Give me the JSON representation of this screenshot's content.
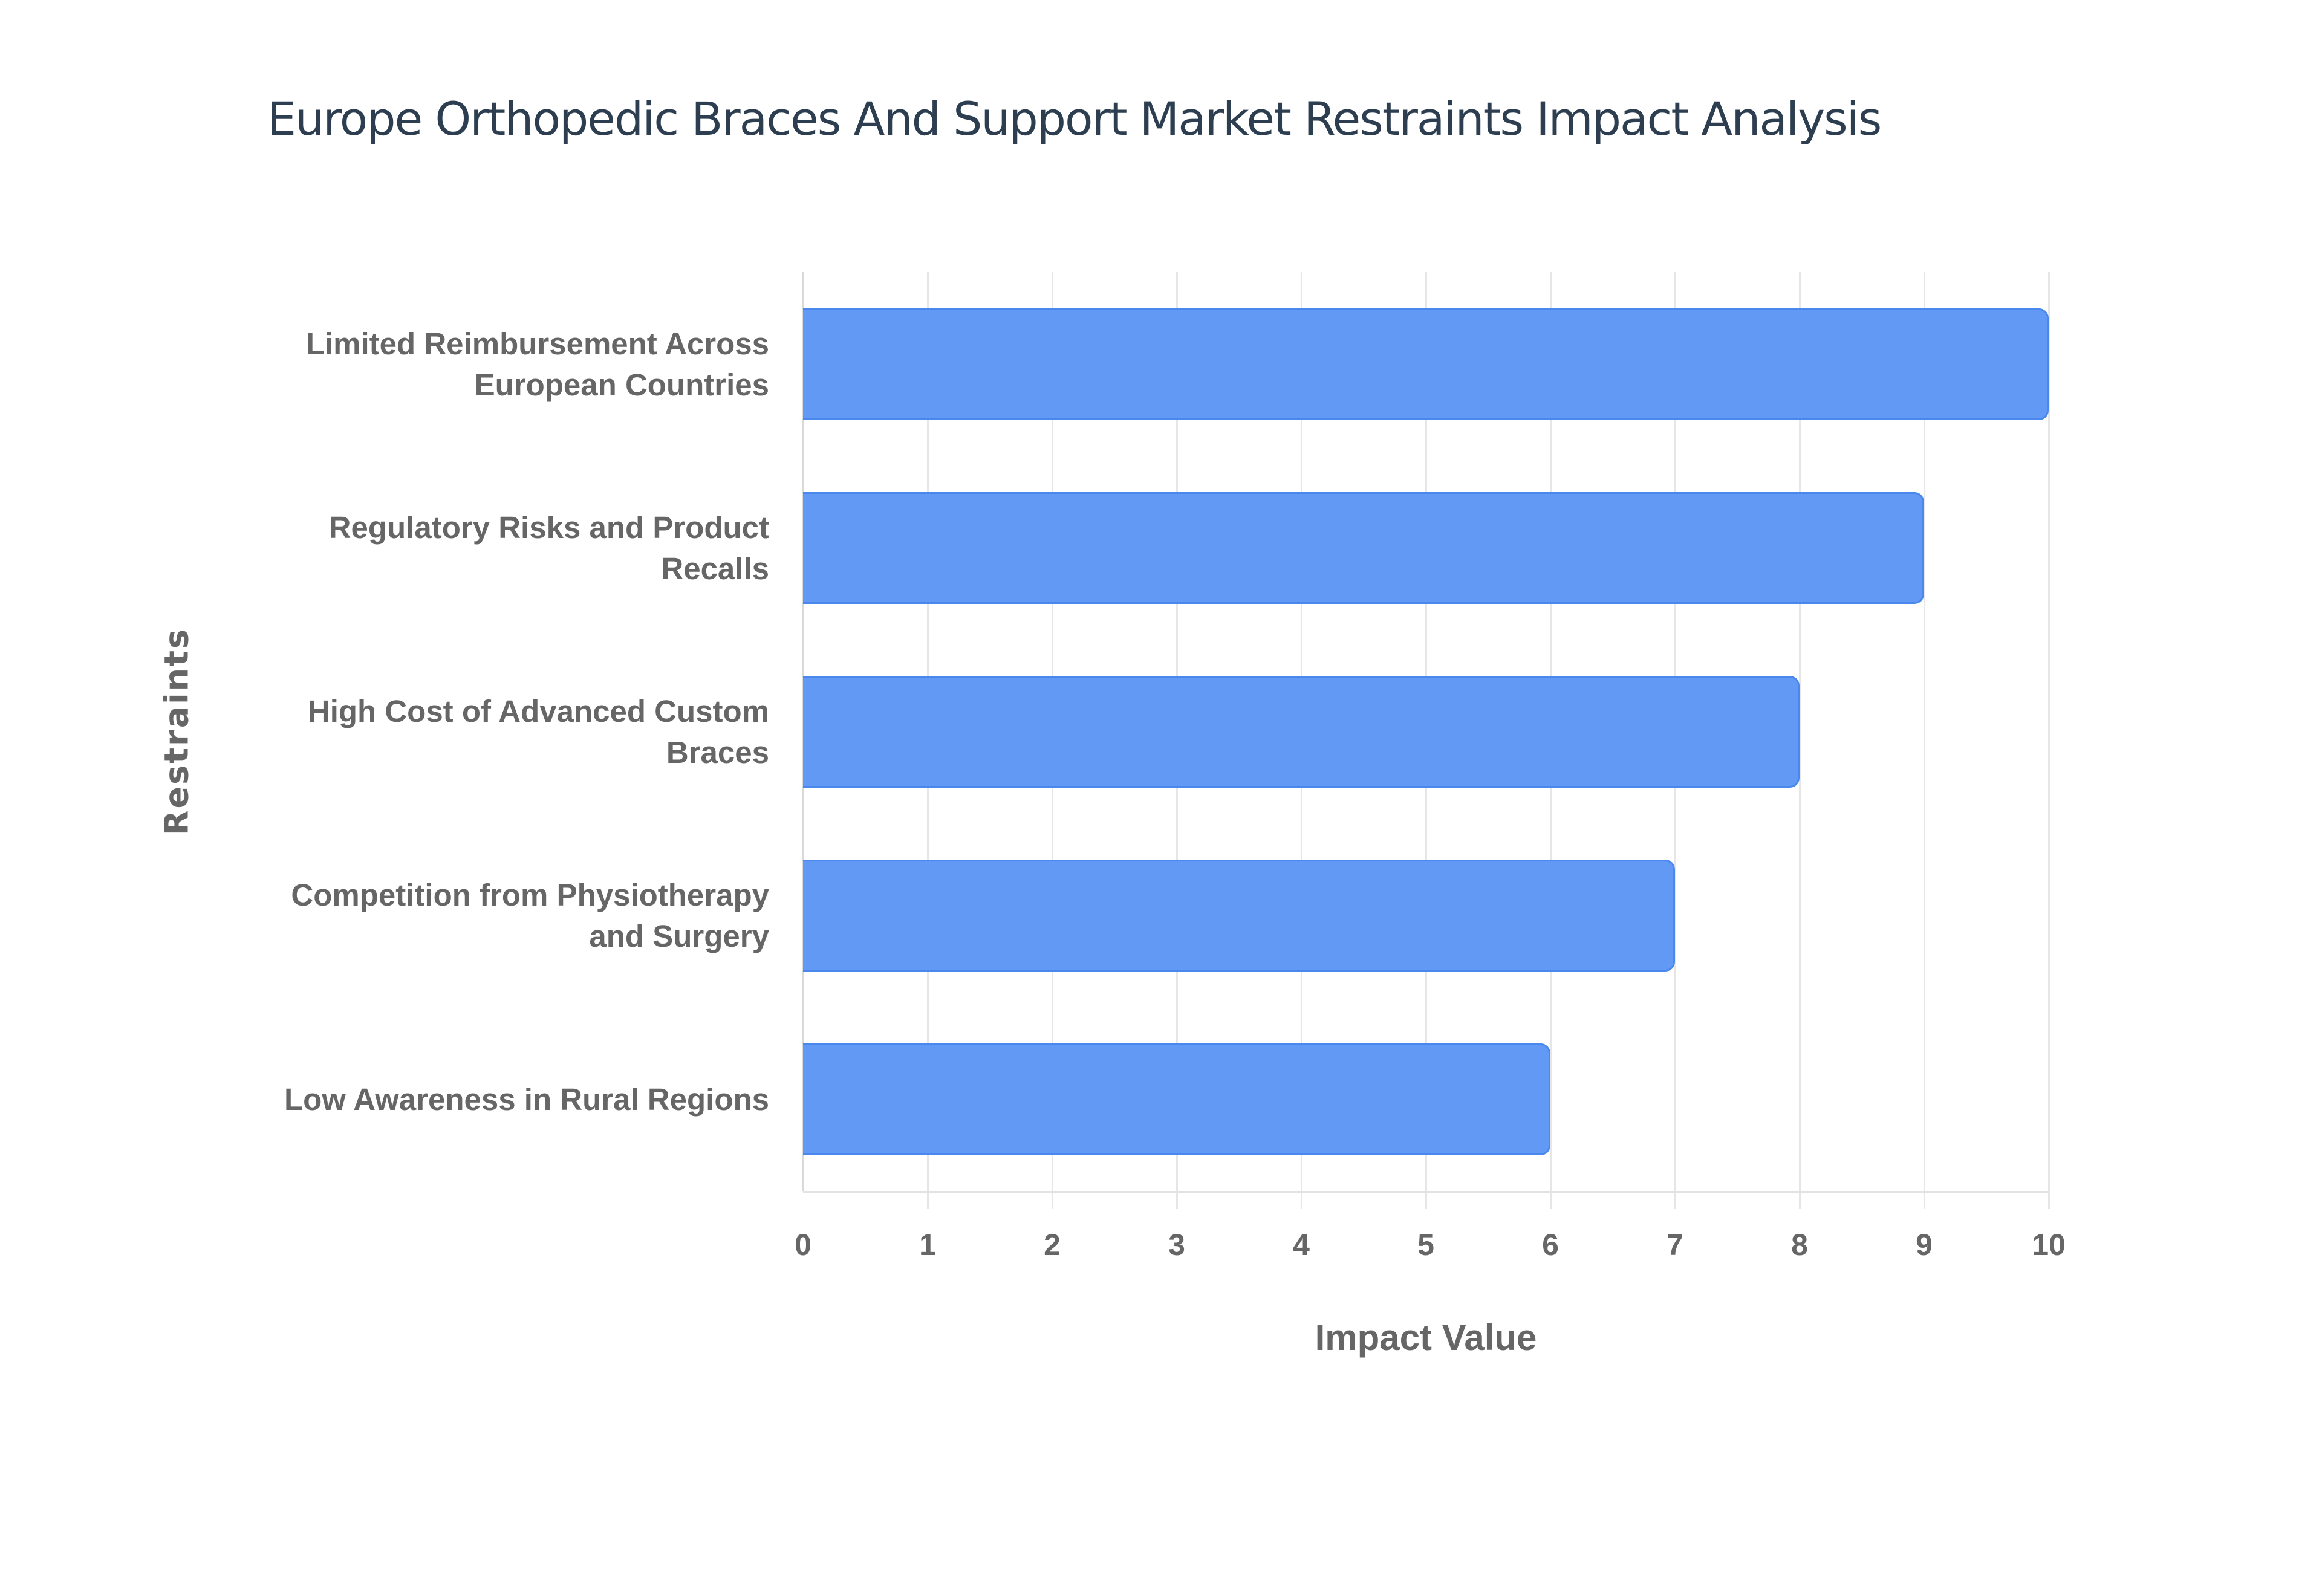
{
  "title": "Europe Orthopedic Braces And Support Market Restraints Impact Analysis",
  "colors": {
    "bar_fill": "#6199f4",
    "bar_border": "#4b88ee",
    "title": "#2c3e50",
    "axis_text": "#666666",
    "grid": "#e6e6e6"
  },
  "chart_data": {
    "type": "bar",
    "orientation": "horizontal",
    "title": "Europe Orthopedic Braces And Support Market Restraints Impact Analysis",
    "xlabel": "Impact Value",
    "ylabel": "Restraints",
    "categories": [
      "Limited Reimbursement Across European Countries",
      "Regulatory Risks and Product Recalls",
      "High Cost of Advanced Custom Braces",
      "Competition from Physiotherapy and Surgery",
      "Low Awareness in Rural Regions"
    ],
    "category_label_lines": [
      [
        "Limited Reimbursement Across",
        "European Countries"
      ],
      [
        "Regulatory Risks and Product",
        "Recalls"
      ],
      [
        "High Cost of Advanced Custom",
        "Braces"
      ],
      [
        "Competition from Physiotherapy",
        "and Surgery"
      ],
      [
        "Low Awareness in Rural Regions"
      ]
    ],
    "values": [
      10,
      9,
      8,
      7,
      6
    ],
    "xlim": [
      0,
      10
    ],
    "xticks": [
      "0",
      "1",
      "2",
      "3",
      "4",
      "5",
      "6",
      "7",
      "8",
      "9",
      "10"
    ],
    "grid": true,
    "legend": null
  }
}
